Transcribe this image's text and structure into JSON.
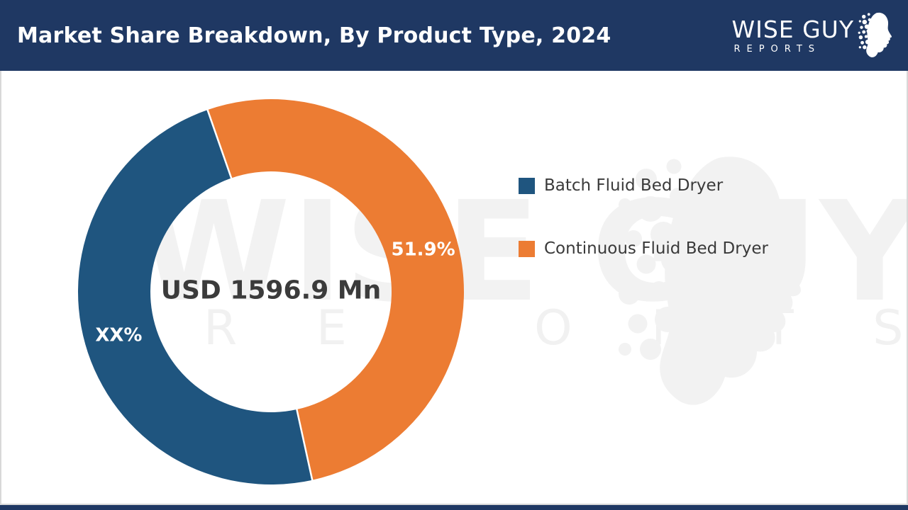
{
  "header": {
    "title": "Market Share Breakdown, By Product Type, 2024",
    "logo": {
      "line1": "WISE GUY",
      "line2": "REPORTS"
    }
  },
  "watermark": {
    "line1": "WISE GUY",
    "line2": "R E P O R T S"
  },
  "chart_data": {
    "type": "pie",
    "variant": "donut",
    "title": "Market Share Breakdown, By Product Type, 2024",
    "center_label": "USD 1596.9 Mn",
    "start_angle_deg": -19.2,
    "legend_position": "right",
    "segments": [
      {
        "name": "Continuous Fluid Bed Dryer",
        "value_pct": 51.9,
        "display_label": "51.9%",
        "color": "#EC7C33"
      },
      {
        "name": "Batch Fluid Bed Dryer",
        "value_pct": 48.1,
        "display_label": "XX%",
        "color": "#1F557F"
      }
    ],
    "legend": [
      {
        "label": "Batch Fluid Bed Dryer",
        "color": "#1F557F"
      },
      {
        "label": "Continuous Fluid Bed Dryer",
        "color": "#EC7C33"
      }
    ]
  },
  "colors": {
    "header_bg": "#1F3863",
    "footer_bg": "#1F3863",
    "blue": "#1F557F",
    "orange": "#EC7C33",
    "center_text": "#3B3B3B",
    "legend_text": "#3A3A3A",
    "watermark": "#F2F2F2",
    "border": "#D8D8D8"
  }
}
